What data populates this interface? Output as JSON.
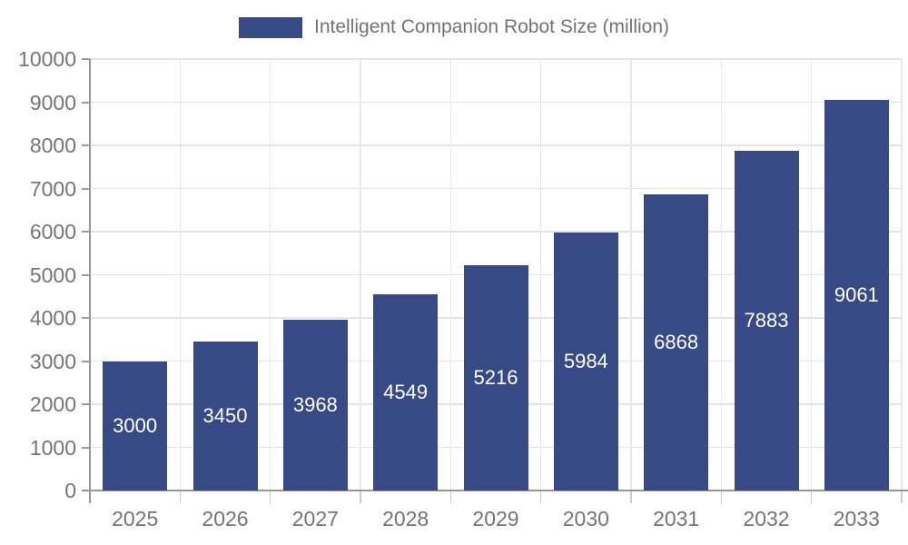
{
  "legend": {
    "label": "Intelligent Companion Robot Size (million)"
  },
  "colors": {
    "bar": "#384a85",
    "bar_label": "#ffffff",
    "grid_horizontal": "#e4e4e4",
    "grid_vertical": "#e9e9e9",
    "axis_line": "#969696",
    "tick": "#9c9c9c",
    "x_boundary_tick": "#cccccc",
    "label_text": "#757575",
    "legend_text": "#737373",
    "background": "#ffffff"
  },
  "chart_data": {
    "type": "bar",
    "title": "",
    "categories": [
      "2025",
      "2026",
      "2027",
      "2028",
      "2029",
      "2030",
      "2031",
      "2032",
      "2033"
    ],
    "series": [
      {
        "name": "Intelligent Companion Robot Size (million)",
        "values": [
          3000,
          3450,
          3968,
          4549,
          5216,
          5984,
          6868,
          7883,
          9061
        ]
      }
    ],
    "xlabel": "",
    "ylabel": "",
    "ylim": [
      0,
      10000
    ],
    "ytick_step": 1000,
    "ytick_labels": [
      "0",
      "1000",
      "2000",
      "3000",
      "4000",
      "5000",
      "6000",
      "7000",
      "8000",
      "9000",
      "10000"
    ],
    "grid": true,
    "legend_position": "top-center",
    "bar_labels": true,
    "bar_label_position": "inside-middle"
  }
}
